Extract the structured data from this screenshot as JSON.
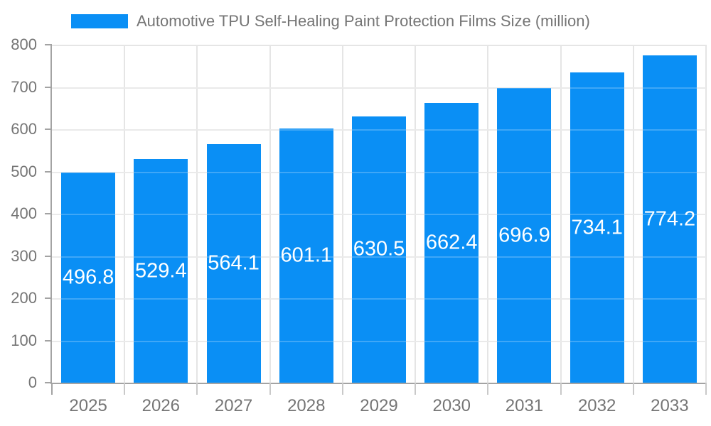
{
  "legend": {
    "label": "Automotive TPU Self-Healing Paint Protection Films Size (million)"
  },
  "colors": {
    "bar": "#0A8FF5",
    "grid": "#E5E5E5",
    "grid_over_bar": "rgba(255,255,255,0.22)",
    "axis": "#A3A3A3",
    "y_tick": "#A3A3A3",
    "x_tick": "#C9C9C9",
    "label_text": "#757575",
    "value_text": "#FFFFFF",
    "background": "#FFFFFF"
  },
  "chart_data": {
    "type": "bar",
    "title": "Automotive TPU Self-Healing Paint Protection Films Size (million)",
    "categories": [
      "2025",
      "2026",
      "2027",
      "2028",
      "2029",
      "2030",
      "2031",
      "2032",
      "2033"
    ],
    "values": [
      496.8,
      529.4,
      564.1,
      601.1,
      630.5,
      662.4,
      696.9,
      734.1,
      774.2
    ],
    "value_labels": [
      "496.8",
      "529.4",
      "564.1",
      "601.1",
      "630.5",
      "662.4",
      "696.9",
      "734.1",
      "774.2"
    ],
    "y_tick_labels": [
      "0",
      "100",
      "200",
      "300",
      "400",
      "500",
      "600",
      "700",
      "800"
    ],
    "xlabel": "",
    "ylabel": "",
    "ylim": [
      0,
      800
    ],
    "ytick_step": 100,
    "grid": true,
    "legend_position": "top-left",
    "value_label_position": "inside-center"
  }
}
